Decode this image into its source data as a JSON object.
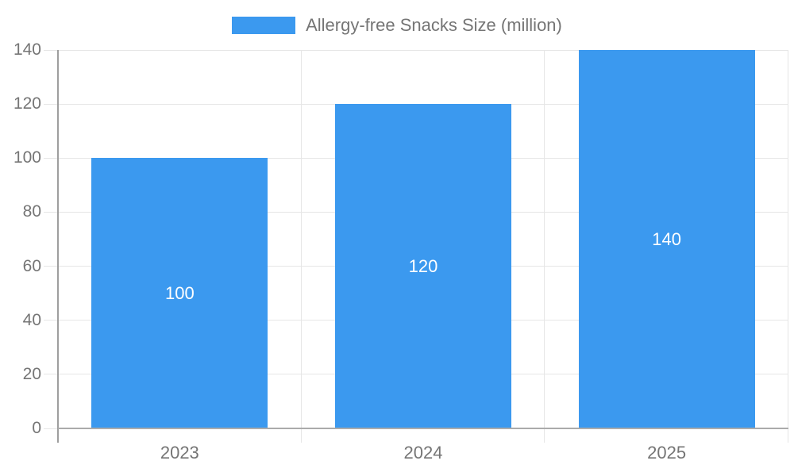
{
  "chart_data": {
    "type": "bar",
    "title": "",
    "legend": {
      "label": "Allergy-free Snacks Size (million)",
      "position": "top"
    },
    "categories": [
      "2023",
      "2024",
      "2025"
    ],
    "series": [
      {
        "name": "Allergy-free Snacks Size (million)",
        "values": [
          100,
          120,
          140
        ]
      }
    ],
    "bar_labels": [
      "100",
      "120",
      "140"
    ],
    "xlabel": "",
    "ylabel": "",
    "ylim": [
      0,
      140
    ],
    "y_ticks": [
      0,
      20,
      40,
      60,
      80,
      100,
      120,
      140
    ],
    "grid": true,
    "legend_swatch_icon": "filled-rect",
    "colors": {
      "bar": "#3b99ef",
      "bar_label": "#ffffff",
      "axis_text": "#757575",
      "grid_line": "#e6e6e6",
      "x_axis_line": "#ababab",
      "y_axis_line": "#9e9e9e",
      "background": "#ffffff"
    }
  }
}
